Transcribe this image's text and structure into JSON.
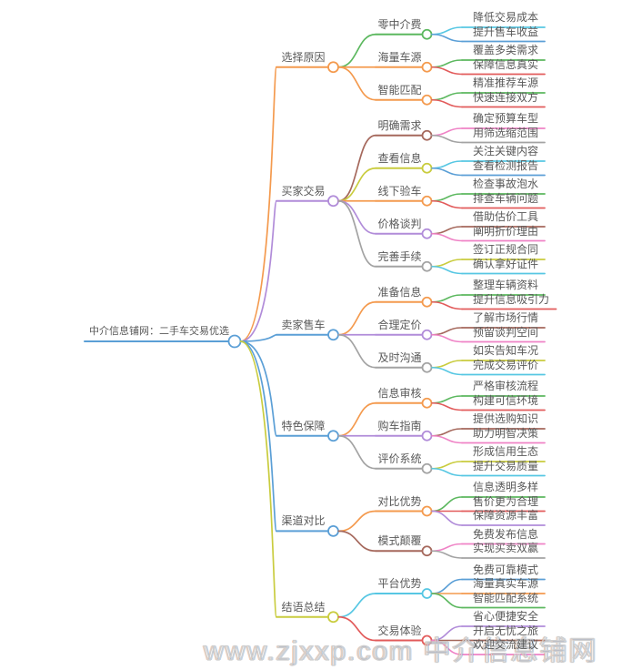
{
  "watermark": {
    "text": "www.zjxxp.com 中介信息铺网"
  },
  "palette": {
    "blue": "#5b9fd6",
    "orange": "#f49a4e",
    "purple": "#b18cd9",
    "green": "#5cb85f",
    "red": "#e25b5b",
    "cyan": "#57c7e3",
    "olive": "#c9cc3e",
    "pink": "#ef83c6",
    "gray": "#a3a3a3",
    "brown": "#a5685c"
  },
  "mindmap": {
    "root": {
      "label": "中介信息铺网：二手车交易优选",
      "color": "blue"
    },
    "branches": [
      {
        "label": "选择原因",
        "color": "orange",
        "children": [
          {
            "label": "零中介费",
            "color": "green",
            "children": [
              {
                "label": "降低交易成本",
                "color": "cyan"
              },
              {
                "label": "提升售车收益",
                "color": "blue"
              }
            ]
          },
          {
            "label": "海量车源",
            "color": "orange",
            "children": [
              {
                "label": "覆盖多类需求",
                "color": "green"
              },
              {
                "label": "保障信息真实",
                "color": "red"
              }
            ]
          },
          {
            "label": "智能匹配",
            "color": "orange",
            "children": [
              {
                "label": "精准推荐车源",
                "color": "green"
              },
              {
                "label": "快速连接双方",
                "color": "red"
              }
            ]
          }
        ]
      },
      {
        "label": "买家交易",
        "color": "purple",
        "children": [
          {
            "label": "明确需求",
            "color": "brown",
            "children": [
              {
                "label": "确定预算车型",
                "color": "pink"
              },
              {
                "label": "用筛选缩范围",
                "color": "gray"
              }
            ]
          },
          {
            "label": "查看信息",
            "color": "olive",
            "children": [
              {
                "label": "关注关键内容",
                "color": "cyan"
              },
              {
                "label": "查看检测报告",
                "color": "blue"
              }
            ]
          },
          {
            "label": "线下验车",
            "color": "orange",
            "children": [
              {
                "label": "检查事故泡水",
                "color": "green"
              },
              {
                "label": "排查车辆问题",
                "color": "red"
              }
            ]
          },
          {
            "label": "价格谈判",
            "color": "purple",
            "children": [
              {
                "label": "借助估价工具",
                "color": "brown"
              },
              {
                "label": "阐明折价理由",
                "color": "pink"
              }
            ]
          },
          {
            "label": "完善手续",
            "color": "gray",
            "children": [
              {
                "label": "签订正规合同",
                "color": "olive"
              },
              {
                "label": "确认拿好证件",
                "color": "cyan"
              }
            ]
          }
        ]
      },
      {
        "label": "卖家售车",
        "color": "blue",
        "children": [
          {
            "label": "准备信息",
            "color": "orange",
            "children": [
              {
                "label": "整理车辆资料",
                "color": "green"
              },
              {
                "label": "提升信息吸引力",
                "color": "red"
              }
            ]
          },
          {
            "label": "合理定价",
            "color": "purple",
            "children": [
              {
                "label": "了解市场行情",
                "color": "brown"
              },
              {
                "label": "预留谈判空间",
                "color": "pink"
              }
            ]
          },
          {
            "label": "及时沟通",
            "color": "gray",
            "children": [
              {
                "label": "如实告知车况",
                "color": "olive"
              },
              {
                "label": "完成交易评价",
                "color": "cyan"
              }
            ]
          }
        ]
      },
      {
        "label": "特色保障",
        "color": "blue",
        "children": [
          {
            "label": "信息审核",
            "color": "orange",
            "children": [
              {
                "label": "严格审核流程",
                "color": "green"
              },
              {
                "label": "构建可信环境",
                "color": "red"
              }
            ]
          },
          {
            "label": "购车指南",
            "color": "purple",
            "children": [
              {
                "label": "提供选购知识",
                "color": "brown"
              },
              {
                "label": "助力明智决策",
                "color": "pink"
              }
            ]
          },
          {
            "label": "评价系统",
            "color": "gray",
            "children": [
              {
                "label": "形成信用生态",
                "color": "olive"
              },
              {
                "label": "提升交易质量",
                "color": "cyan"
              }
            ]
          }
        ]
      },
      {
        "label": "渠道对比",
        "color": "blue",
        "children": [
          {
            "label": "对比优势",
            "color": "orange",
            "children": [
              {
                "label": "信息透明多样",
                "color": "green"
              },
              {
                "label": "售价更为合理",
                "color": "red"
              },
              {
                "label": "保障资源丰富",
                "color": "purple"
              }
            ]
          },
          {
            "label": "模式颠覆",
            "color": "brown",
            "children": [
              {
                "label": "免费发布信息",
                "color": "pink"
              },
              {
                "label": "实现买卖双赢",
                "color": "gray"
              }
            ]
          }
        ]
      },
      {
        "label": "结语总结",
        "color": "olive",
        "children": [
          {
            "label": "平台优势",
            "color": "cyan",
            "children": [
              {
                "label": "免费可靠模式",
                "color": "blue"
              },
              {
                "label": "海量真实车源",
                "color": "orange"
              },
              {
                "label": "智能匹配系统",
                "color": "green"
              }
            ]
          },
          {
            "label": "交易体验",
            "color": "red",
            "children": [
              {
                "label": "省心便捷安全",
                "color": "purple"
              },
              {
                "label": "开启无忧之旅",
                "color": "brown"
              },
              {
                "label": "欢迎交流建议",
                "color": "pink"
              }
            ]
          }
        ]
      }
    ]
  }
}
